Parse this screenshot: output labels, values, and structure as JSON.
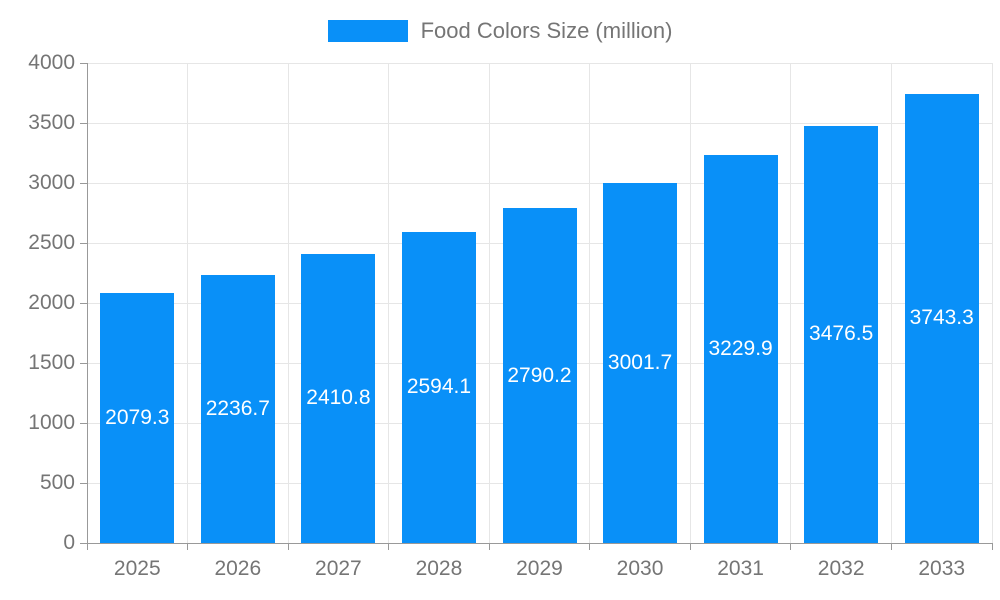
{
  "chart_data": {
    "type": "bar",
    "title": "Food Colors Size (million)",
    "categories": [
      "2025",
      "2026",
      "2027",
      "2028",
      "2029",
      "2030",
      "2031",
      "2032",
      "2033"
    ],
    "series": [
      {
        "name": "Food Colors Size (million)",
        "values": [
          2079.3,
          2236.7,
          2410.8,
          2594.1,
          2790.2,
          3001.7,
          3229.9,
          3476.5,
          3743.3
        ]
      }
    ],
    "value_labels": [
      "2079.3",
      "2236.7",
      "2410.8",
      "2594.1",
      "2790.2",
      "3001.7",
      "3229.9",
      "3476.5",
      "3743.3"
    ],
    "xlabel": "",
    "ylabel": "",
    "ylim": [
      0,
      4000
    ],
    "yticks": [
      0,
      500,
      1000,
      1500,
      2000,
      2500,
      3000,
      3500,
      4000
    ],
    "grid": true,
    "legend_position": "top-center",
    "colors": {
      "bar": "#0990f8",
      "grid_line": "#e6e6e6",
      "axis_line": "#999999",
      "axis_text": "#757575",
      "value_label_text": "#ffffff",
      "legend_text": "#757575"
    }
  }
}
